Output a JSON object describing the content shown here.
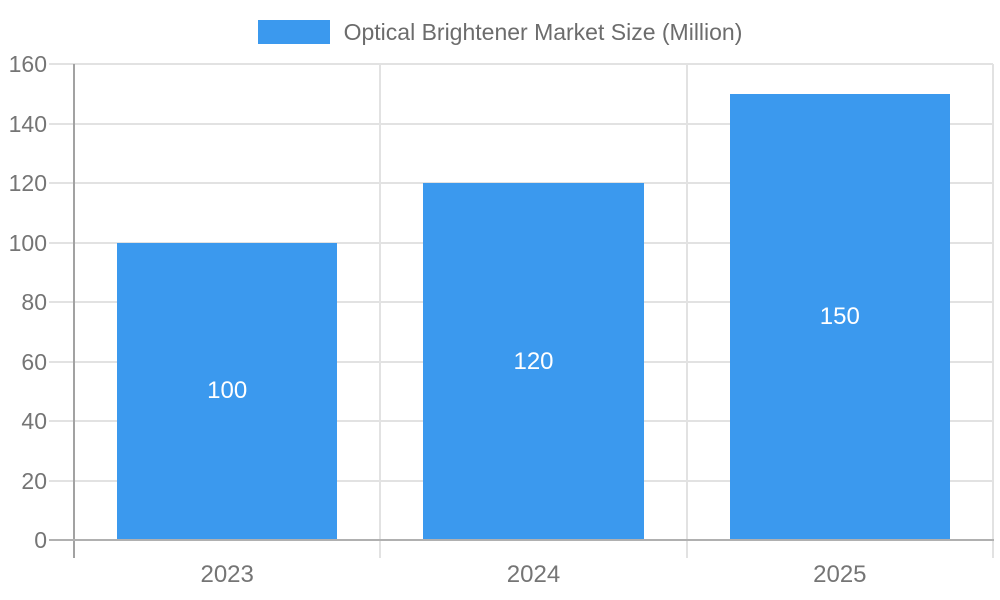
{
  "legend": {
    "series_label": "Optical Brightener Market Size (Million)"
  },
  "chart_data": {
    "type": "bar",
    "title": "Optical Brightener Market Size (Million)",
    "categories": [
      "2023",
      "2024",
      "2025"
    ],
    "values": [
      100,
      120,
      150
    ],
    "data_labels": [
      "100",
      "120",
      "150"
    ],
    "xlabel": "",
    "ylabel": "",
    "ylim": [
      0,
      160
    ],
    "ytick_step": 20,
    "ytick_labels": [
      "0",
      "20",
      "40",
      "60",
      "80",
      "100",
      "120",
      "140",
      "160"
    ],
    "legend_position": "top",
    "grid": true,
    "colors": {
      "bar": "#3b99ee",
      "grid": "#e2e2e2",
      "x_axis": "#b0b0b0",
      "y_axis": "#a2a2a2",
      "tick_label": "#757575",
      "title": "#6c6c6c",
      "data_label": "#ffffff",
      "background": "#ffffff"
    }
  }
}
